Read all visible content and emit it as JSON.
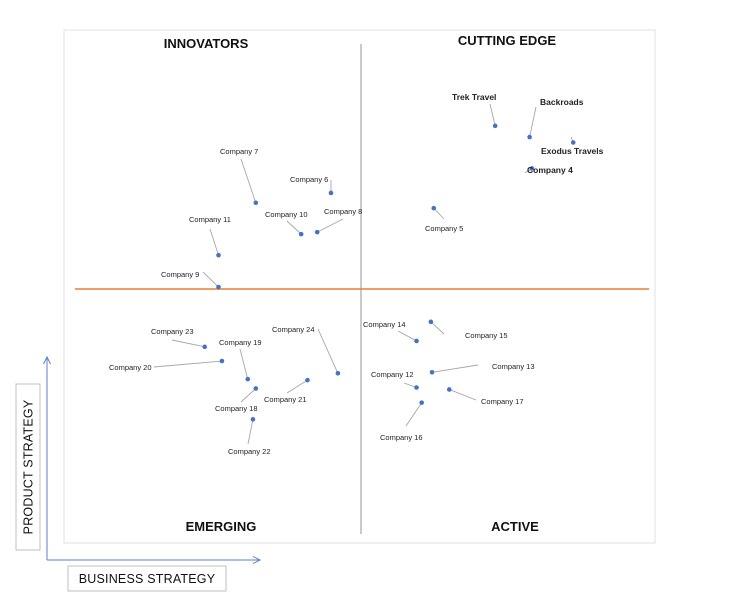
{
  "chart_data": {
    "type": "scatter",
    "quadrants": {
      "top_left": "INNOVATORS",
      "top_right": "CUTTING EDGE",
      "bottom_left": "EMERGING",
      "bottom_right": "ACTIVE"
    },
    "xlabel": "BUSINESS STRATEGY",
    "ylabel": "PRODUCT STRATEGY",
    "x_range": [
      0,
      100
    ],
    "y_range": [
      0,
      100
    ],
    "grid": false,
    "colors": {
      "point": "#4472c4",
      "divider_h": "#ed7d31",
      "divider_v": "#a6a6a6",
      "leader": "#a6a6a6",
      "axis_arrow": "#5b7fcf"
    },
    "points": [
      {
        "name": "Trek Travel",
        "x": 73.2,
        "y": 83.3,
        "bold": true
      },
      {
        "name": "Backroads",
        "x": 79.2,
        "y": 81.0,
        "bold": true
      },
      {
        "name": "Exodus Travels",
        "x": 86.8,
        "y": 79.9,
        "bold": true
      },
      {
        "name": "Company 4",
        "x": 79.6,
        "y": 74.6,
        "bold": true
      },
      {
        "name": "Company 5",
        "x": 62.5,
        "y": 66.5,
        "bold": false
      },
      {
        "name": "Company 6",
        "x": 44.6,
        "y": 69.6,
        "bold": false
      },
      {
        "name": "Company 7",
        "x": 31.5,
        "y": 67.6,
        "bold": false
      },
      {
        "name": "Company 8",
        "x": 42.2,
        "y": 61.6,
        "bold": false
      },
      {
        "name": "Company 9",
        "x": 25.0,
        "y": 50.4,
        "bold": false
      },
      {
        "name": "Company 10",
        "x": 39.4,
        "y": 61.2,
        "bold": false
      },
      {
        "name": "Company 11",
        "x": 25.0,
        "y": 56.9,
        "bold": false
      },
      {
        "name": "Company 12",
        "x": 59.5,
        "y": 29.9,
        "bold": false
      },
      {
        "name": "Company 13",
        "x": 62.2,
        "y": 33.0,
        "bold": false
      },
      {
        "name": "Company 14",
        "x": 59.5,
        "y": 39.4,
        "bold": false
      },
      {
        "name": "Company 15",
        "x": 62.0,
        "y": 43.3,
        "bold": false
      },
      {
        "name": "Company 16",
        "x": 60.4,
        "y": 26.8,
        "bold": false
      },
      {
        "name": "Company 17",
        "x": 65.2,
        "y": 29.5,
        "bold": false
      },
      {
        "name": "Company 18",
        "x": 31.5,
        "y": 29.7,
        "bold": false
      },
      {
        "name": "Company 19",
        "x": 30.1,
        "y": 31.6,
        "bold": false
      },
      {
        "name": "Company 20",
        "x": 25.6,
        "y": 35.3,
        "bold": false
      },
      {
        "name": "Company 21",
        "x": 40.5,
        "y": 31.4,
        "bold": false
      },
      {
        "name": "Company 22",
        "x": 31.0,
        "y": 23.4,
        "bold": false
      },
      {
        "name": "Company 23",
        "x": 22.6,
        "y": 38.2,
        "bold": false
      },
      {
        "name": "Company 24",
        "x": 45.8,
        "y": 32.8,
        "bold": false
      }
    ]
  }
}
